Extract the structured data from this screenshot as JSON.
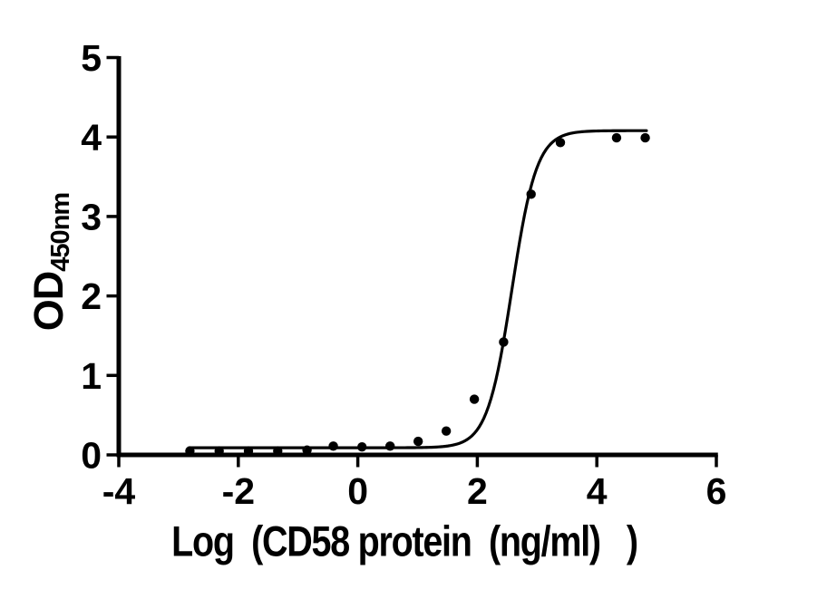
{
  "figure": {
    "background_color": "#ffffff",
    "ink_color": "#000000"
  },
  "chart_data": {
    "type": "scatter",
    "title": "",
    "xlabel": "Log  (CD58 protein  (ng/ml)   )",
    "ylabel_main": "OD",
    "ylabel_sub": "450nm",
    "xlim": [
      -4,
      6
    ],
    "ylim": [
      0,
      5
    ],
    "x_ticks": [
      -4,
      -2,
      0,
      2,
      4,
      6
    ],
    "y_ticks": [
      0,
      1,
      2,
      3,
      4,
      5
    ],
    "grid": false,
    "legend": "none",
    "marker": {
      "shape": "circle",
      "color": "#000000"
    },
    "points": [
      {
        "x": -2.81,
        "y": 0.05
      },
      {
        "x": -2.32,
        "y": 0.05
      },
      {
        "x": -1.83,
        "y": 0.05
      },
      {
        "x": -1.34,
        "y": 0.05
      },
      {
        "x": -0.85,
        "y": 0.06
      },
      {
        "x": -0.41,
        "y": 0.11
      },
      {
        "x": 0.07,
        "y": 0.1
      },
      {
        "x": 0.54,
        "y": 0.11
      },
      {
        "x": 1.01,
        "y": 0.17
      },
      {
        "x": 1.48,
        "y": 0.3
      },
      {
        "x": 1.95,
        "y": 0.7
      },
      {
        "x": 2.44,
        "y": 1.42
      },
      {
        "x": 2.9,
        "y": 3.28
      },
      {
        "x": 3.39,
        "y": 3.93
      },
      {
        "x": 4.33,
        "y": 3.99
      },
      {
        "x": 4.81,
        "y": 3.99
      }
    ],
    "fit_curve": {
      "model": "4PL sigmoid",
      "bottom": 0.09,
      "top": 4.08,
      "log_ec50": 2.58,
      "hill_slope": 2.1,
      "x_start": -2.81,
      "x_end": 4.83
    }
  }
}
